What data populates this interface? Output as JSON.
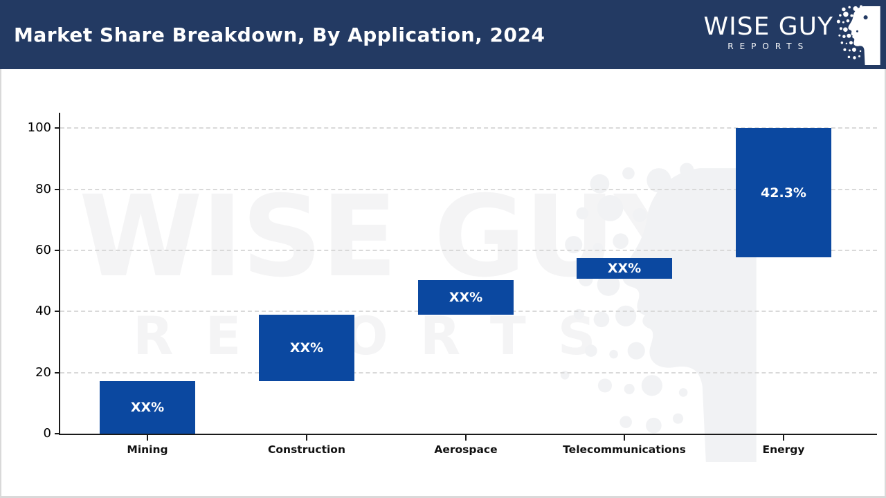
{
  "header": {
    "title": "Market Share Breakdown, By Application, 2024",
    "logo": {
      "line1": "WISE GUY",
      "line2": "REPORTS"
    }
  },
  "watermark": {
    "line1": "WISE GUY",
    "line2": "REPORTS"
  },
  "colors": {
    "header_bg": "#233a63",
    "bar_blue": "#0b48a0",
    "grid_gray": "#d9d9d9",
    "axis_black": "#1a1a1a",
    "watermark_gray": "#f4f4f5",
    "bar_label_white": "#ffffff"
  },
  "chart_data": {
    "type": "bar",
    "subtype": "floating-waterfall",
    "title": "Market Share Breakdown, By Application, 2024",
    "categories": [
      "Mining",
      "Construction",
      "Aerospace",
      "Telecommunications",
      "Energy"
    ],
    "segments": [
      {
        "label": "Mining",
        "start": 0,
        "end": 17.3,
        "value": 17.3,
        "display": "XX%"
      },
      {
        "label": "Construction",
        "start": 17.3,
        "end": 38.9,
        "value": 21.6,
        "display": "XX%"
      },
      {
        "label": "Aerospace",
        "start": 39.0,
        "end": 50.3,
        "value": 11.3,
        "display": "XX%"
      },
      {
        "label": "Telecommunications",
        "start": 50.7,
        "end": 57.5,
        "value": 6.8,
        "display": "XX%"
      },
      {
        "label": "Energy",
        "start": 57.7,
        "end": 100,
        "value": 42.3,
        "display": "42.3%"
      }
    ],
    "yticks": [
      0,
      20,
      40,
      60,
      80,
      100
    ],
    "ylim": [
      0,
      105
    ],
    "xlabel": "",
    "ylabel": "",
    "grid": "horizontal-dashed",
    "legend": "none",
    "bar_color": "#0b48a0"
  }
}
